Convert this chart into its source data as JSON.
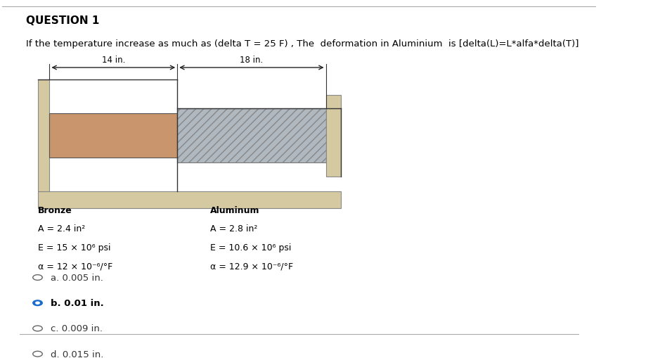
{
  "title": "QUESTION 1",
  "question_text": "If the temperature increase as much as (delta T = 25 F) , The  deformation in Aluminium  is [delta(L)=L*alfa*delta(T)]",
  "dim_14": "14 in.",
  "dim_18": "18 in.",
  "bronze_label": "Bronze",
  "bronze_A": "A = 2.4 in²",
  "bronze_E": "E = 15 × 10⁶ psi",
  "bronze_alpha": "α = 12 × 10⁻⁶/°F",
  "alum_label": "Aluminum",
  "alum_A": "A = 2.8 in²",
  "alum_E": "E = 10.6 × 10⁶ psi",
  "alum_alpha": "α = 12.9 × 10⁻⁶/°F",
  "options": [
    {
      "label": "a. 0.005 in.",
      "selected": false
    },
    {
      "label": "b. 0.01 in.",
      "selected": true
    },
    {
      "label": "c. 0.009 in.",
      "selected": false
    },
    {
      "label": "d. 0.015 in.",
      "selected": false
    }
  ],
  "bronze_color": "#c8956c",
  "alum_color": "#b0b8c0",
  "wall_color": "#d4c9a0",
  "bg_color": "#ffffff",
  "selected_color": "#1a6dcc"
}
